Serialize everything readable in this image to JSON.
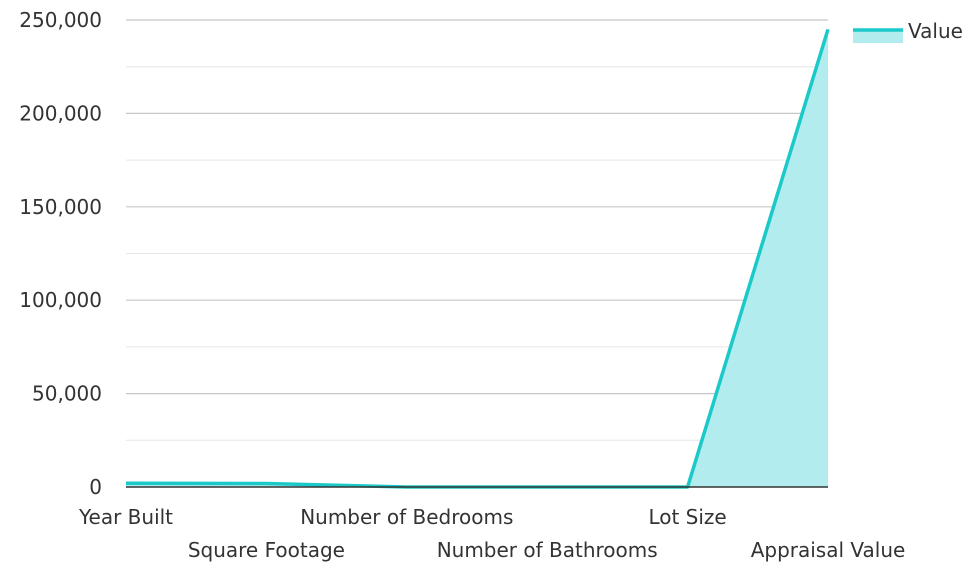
{
  "chart_data": {
    "type": "area",
    "categories": [
      "Year Built",
      "Square Footage",
      "Number of Bedrooms",
      "Number of Bathrooms",
      "Lot Size",
      "Appraisal Value"
    ],
    "series": [
      {
        "name": "Value",
        "values": [
          2005,
          1850,
          3,
          2,
          0.25,
          245000
        ]
      }
    ],
    "ylim": [
      0,
      250000
    ],
    "yticks": [
      0,
      50000,
      100000,
      150000,
      200000,
      250000
    ],
    "ytick_labels": [
      "0",
      "50,000",
      "100,000",
      "150,000",
      "200,000",
      "250,000"
    ],
    "grid": true,
    "legend_position": "top-right",
    "colors": {
      "line": "#1cc9c9",
      "fill": "#b2ecee",
      "grid_major": "#c8c8c8",
      "grid_minor": "#e6e6e6",
      "axis": "#333333"
    }
  }
}
